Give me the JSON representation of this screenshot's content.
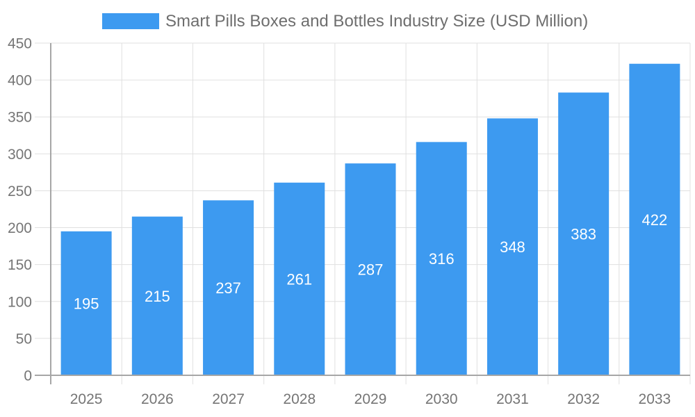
{
  "chart_data": {
    "type": "bar",
    "title": "Smart Pills Boxes and Bottles Industry Size (USD Million)",
    "categories": [
      "2025",
      "2026",
      "2027",
      "2028",
      "2029",
      "2030",
      "2031",
      "2032",
      "2033"
    ],
    "values": [
      195,
      215,
      237,
      261,
      287,
      316,
      348,
      383,
      422
    ],
    "xlabel": "",
    "ylabel": "",
    "ylim": [
      0,
      450
    ],
    "ytick_step": 50,
    "yticks": [
      0,
      50,
      100,
      150,
      200,
      250,
      300,
      350,
      400,
      450
    ],
    "grid": true,
    "legend_position": "top",
    "bar_value_labels": "inside-centered",
    "colors": {
      "bar": "#3D9AF0",
      "bar_label_text": "#FFFFFF",
      "axis_line": "#A6A6A6",
      "gridline": "#E0E0E0",
      "tick_label": "#757575",
      "title_text": "#6E6E6E",
      "background": "#FFFFFF"
    }
  }
}
